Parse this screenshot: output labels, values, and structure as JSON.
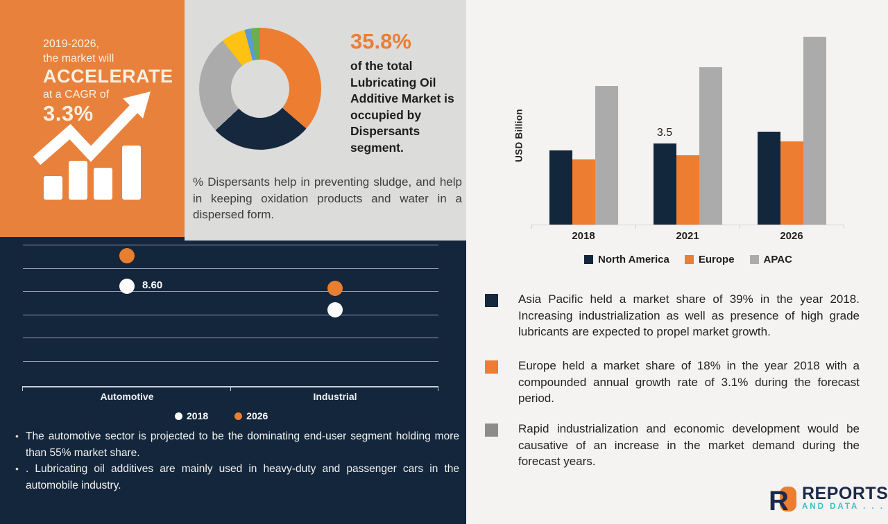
{
  "colors": {
    "accent_orange": "#ED7D31",
    "navy": "#15283E",
    "gray": "#ABABAB",
    "yellow": "#FFC213",
    "blue": "#5B9BD5",
    "green": "#6AAE4E",
    "white_dot": "#FCFCFC",
    "teal": "#38BEC5",
    "panel_orange": "#E8813B",
    "panel_navy": "#13263C"
  },
  "left_panel": {
    "period": "2019-2026,",
    "line2": "the market will",
    "accelerate": "ACCELERATE",
    "cagr_line": "at a CAGR of",
    "cagr_value": "3.3%"
  },
  "dispersants_section": {
    "headline_value": "35.8%",
    "headline_text": "of the total Lubricating Oil Additive Market is occupied by Dispersants segment.",
    "caption": "% Dispersants help in preventing sludge, and help in keeping oxidation products and water in a dispersed form."
  },
  "left_bullets": [
    {
      "text": "The automotive sector is projected to be the dominating end-user segment holding more than 55%  market share."
    },
    {
      "text": ". Lubricating oil additives are mainly used in heavy-duty and passenger cars in the automobile industry."
    }
  ],
  "right_bullets": [
    {
      "color": "#15283E",
      "text": "Asia Pacific held a market share of 39% in the year 2018. Increasing industrialization as well as presence of high grade lubricants are expected to propel market growth."
    },
    {
      "color": "#ED7D31",
      "text": "Europe held a market share of 18% in the year 2018 with a compounded annual growth rate of 3.1% during the forecast period."
    },
    {
      "color": "#8C8C8C",
      "text": "Rapid industrialization and economic development would be causative of an increase in the market demand during the forecast years."
    }
  ],
  "logo": {
    "title": "REPORTS",
    "subtitle": "AND DATA . . ."
  },
  "chart_data": [
    {
      "type": "pie",
      "donut": true,
      "title": "",
      "legend_position": "none",
      "segments": [
        {
          "label": "Dispersants",
          "value": 35.8,
          "color": "#ED7D31"
        },
        {
          "label": "",
          "value": 26.7,
          "color": "#15283E"
        },
        {
          "label": "",
          "value": 26.4,
          "color": "#ABABAB"
        },
        {
          "label": "",
          "value": 6.4,
          "color": "#FFC213"
        },
        {
          "label": "",
          "value": 1.7,
          "color": "#5B9BD5"
        },
        {
          "label": "",
          "value": 3.0,
          "color": "#6AAE4E"
        }
      ]
    },
    {
      "type": "scatter",
      "grid": true,
      "categories": [
        "Automotive",
        "Industrial"
      ],
      "series": [
        {
          "name": "2018",
          "color": "#FCFCFC",
          "values": [
            8.6,
            7.6
          ],
          "labels": [
            "8.60",
            null
          ]
        },
        {
          "name": "2026",
          "color": "#E87F2F",
          "values": [
            9.9,
            8.5
          ],
          "labels": [
            null,
            null
          ]
        }
      ],
      "legend_position": "bottom"
    },
    {
      "type": "bar",
      "categories": [
        "2018",
        "2021",
        "2026"
      ],
      "series": [
        {
          "name": "North America",
          "color": "#12263C",
          "values": [
            3.2,
            3.5,
            4.0
          ],
          "labels": [
            null,
            "3.5",
            null
          ]
        },
        {
          "name": "Europe",
          "color": "#ED7D31",
          "values": [
            2.8,
            3.0,
            3.6
          ],
          "labels": [
            null,
            null,
            null
          ]
        },
        {
          "name": "APAC",
          "color": "#ABABAB",
          "values": [
            6.0,
            6.8,
            8.1
          ],
          "labels": [
            null,
            null,
            null
          ]
        }
      ],
      "xlabel": "",
      "ylabel": "USD Billion",
      "ylim": [
        0,
        8.5
      ],
      "grid": false,
      "legend_position": "bottom"
    }
  ]
}
